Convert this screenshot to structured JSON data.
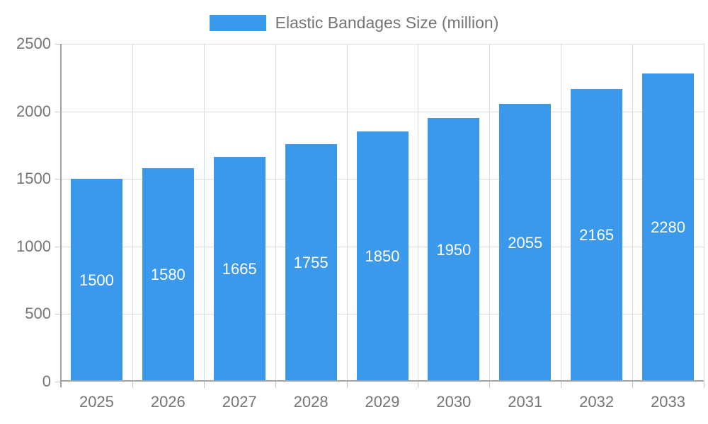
{
  "chart_data": {
    "type": "bar",
    "title": "",
    "categories": [
      "2025",
      "2026",
      "2027",
      "2028",
      "2029",
      "2030",
      "2031",
      "2032",
      "2033"
    ],
    "series": [
      {
        "name": "Elastic Bandages Size (million)",
        "values": [
          1500,
          1580,
          1665,
          1755,
          1850,
          1950,
          2055,
          2165,
          2280
        ]
      }
    ],
    "xlabel": "",
    "ylabel": "",
    "ylim": [
      0,
      2500
    ],
    "yticks": [
      0,
      500,
      1000,
      1500,
      2000,
      2500
    ],
    "grid": true,
    "legend_position": "top-center",
    "value_labels_position": "inside-middle",
    "colors": {
      "bar": "#3b99ec",
      "grid_line": "#dddddd",
      "axis_line": "#a3a3a3",
      "tick_mark": "#c4c4c4",
      "axis_text": "#757575",
      "value_label_text": "#ffffff",
      "background": "#ffffff"
    }
  }
}
